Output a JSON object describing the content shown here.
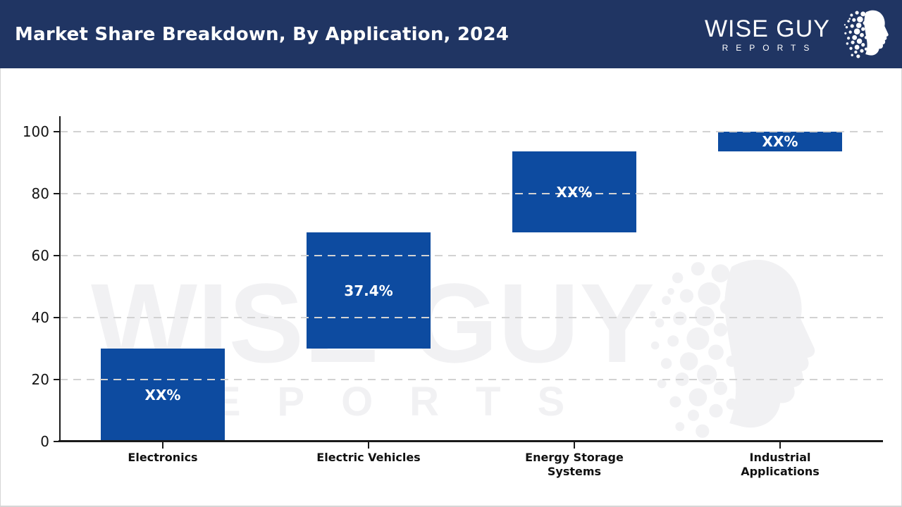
{
  "header": {
    "title": "Market Share Breakdown, By Application, 2024",
    "logo": {
      "line1": "WISE GUY",
      "line2": "REPORTS"
    }
  },
  "watermark": {
    "line1": "WISE GUY",
    "line2": "REPORTS"
  },
  "chart_data": {
    "type": "bar",
    "subtype": "waterfall",
    "title": "Market Share Breakdown, By Application, 2024",
    "categories": [
      "Electronics",
      "Electric Vehicles",
      "Energy Storage Systems",
      "Industrial Applications"
    ],
    "segments": [
      {
        "category": "Electronics",
        "start": 0,
        "end": 30,
        "estimated_value": 30,
        "display_label": "XX%"
      },
      {
        "category": "Electric Vehicles",
        "start": 30,
        "end": 67.4,
        "estimated_value": 37.4,
        "display_label": "37.4%"
      },
      {
        "category": "Energy Storage Systems",
        "start": 67.4,
        "end": 93.6,
        "estimated_value": 26.2,
        "display_label": "XX%"
      },
      {
        "category": "Industrial Applications",
        "start": 93.6,
        "end": 100,
        "estimated_value": 6.4,
        "display_label": "XX%"
      }
    ],
    "ylim": [
      0,
      100
    ],
    "yticks": [
      0,
      20,
      40,
      60,
      80,
      100
    ],
    "grid": {
      "horizontal": true,
      "style": "dashed",
      "over_bars": true
    },
    "legend": null,
    "xlabel": "",
    "ylabel": ""
  },
  "colors": {
    "header_bg": "#203563",
    "bar": "#0d4ba0",
    "bar_label": "#ffffff",
    "axis": "#1a1a1a",
    "gridline": "#d2d2d2",
    "watermark": "#f1f1f3"
  }
}
